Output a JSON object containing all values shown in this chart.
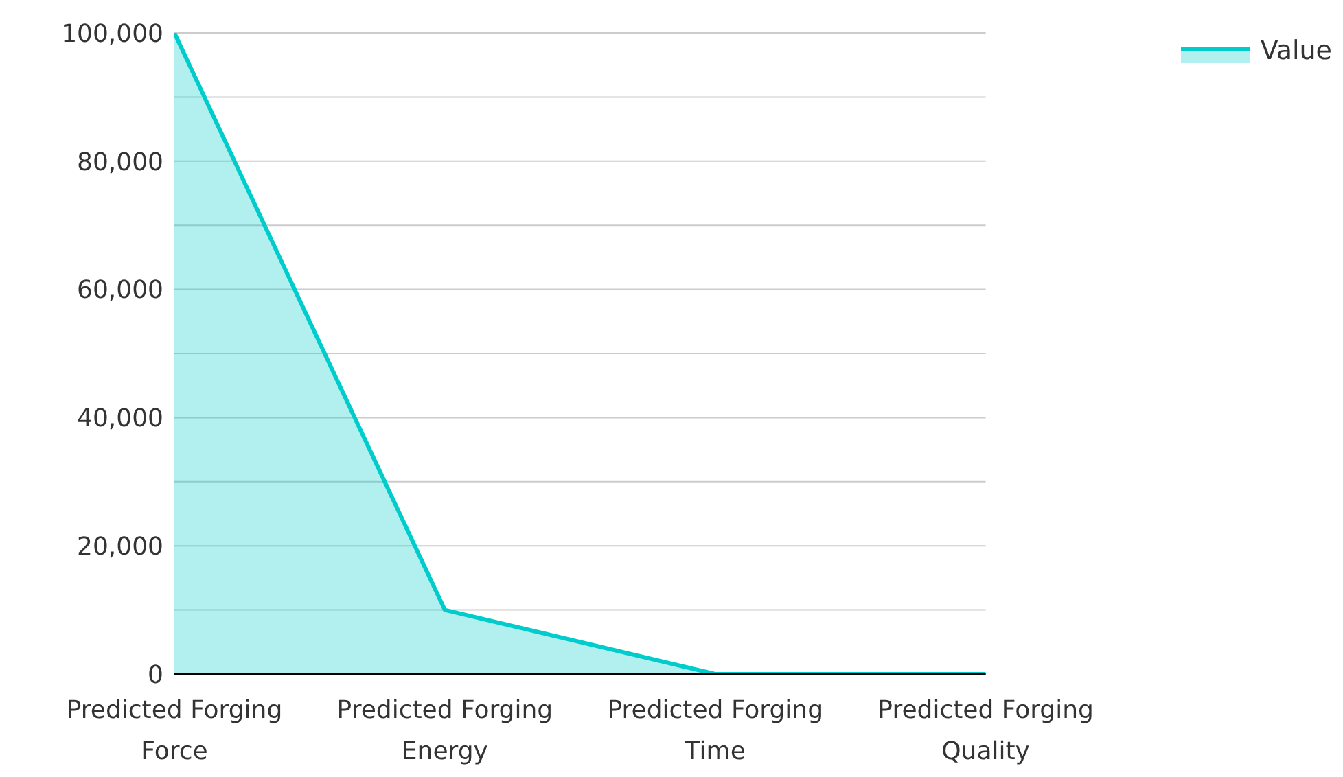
{
  "chart_data": {
    "type": "area",
    "categories": [
      "Predicted Forging Force",
      "Predicted Forging Energy",
      "Predicted Forging Time",
      "Predicted Forging Quality"
    ],
    "series": [
      {
        "name": "Value",
        "color": "#00cccc",
        "values": [
          100000,
          10000,
          0,
          0
        ]
      }
    ],
    "ylim": [
      0,
      100000
    ],
    "yticks": [
      0,
      {
        "value": 10000,
        "label": null
      },
      {
        "value": 20000,
        "label": "20,000"
      },
      {
        "value": 30000,
        "label": null
      },
      {
        "value": 40000,
        "label": "40,000"
      },
      {
        "value": 50000,
        "label": null
      },
      {
        "value": 60000,
        "label": "60,000"
      },
      {
        "value": 70000,
        "label": null
      },
      {
        "value": 80000,
        "label": "80,000"
      },
      {
        "value": 90000,
        "label": null
      },
      {
        "value": 100000,
        "label": "100,000"
      }
    ],
    "grid": "y",
    "legend": "top right",
    "marker": "none",
    "line_style": "solid"
  }
}
